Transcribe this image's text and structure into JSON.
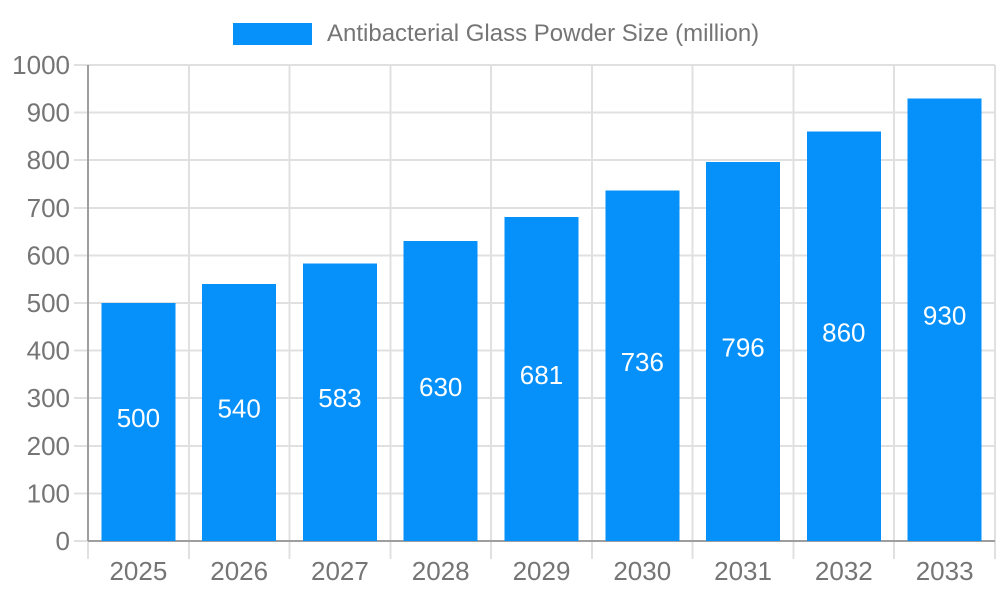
{
  "legend": {
    "label": "Antibacterial Glass Powder Size (million)"
  },
  "chart_data": {
    "type": "bar",
    "title": "",
    "legend_position": "top",
    "legend_entries": [
      "Antibacterial Glass Powder Size (million)"
    ],
    "categories": [
      "2025",
      "2026",
      "2027",
      "2028",
      "2029",
      "2030",
      "2031",
      "2032",
      "2033"
    ],
    "series": [
      {
        "name": "Antibacterial Glass Powder Size (million)",
        "values": [
          500,
          540,
          583,
          630,
          681,
          736,
          796,
          860,
          930
        ]
      }
    ],
    "xlabel": "",
    "ylabel": "",
    "ylim": [
      0,
      1000
    ],
    "ytick_step": 100,
    "grid": true,
    "bar_labels_shown": true,
    "colors": {
      "bar": "#0690fa",
      "bar_label": "#ffffff",
      "axis_text": "#757575",
      "grid_line": "#e0e0e0",
      "axis_line": "#9e9e9e",
      "background": "#ffffff"
    }
  }
}
